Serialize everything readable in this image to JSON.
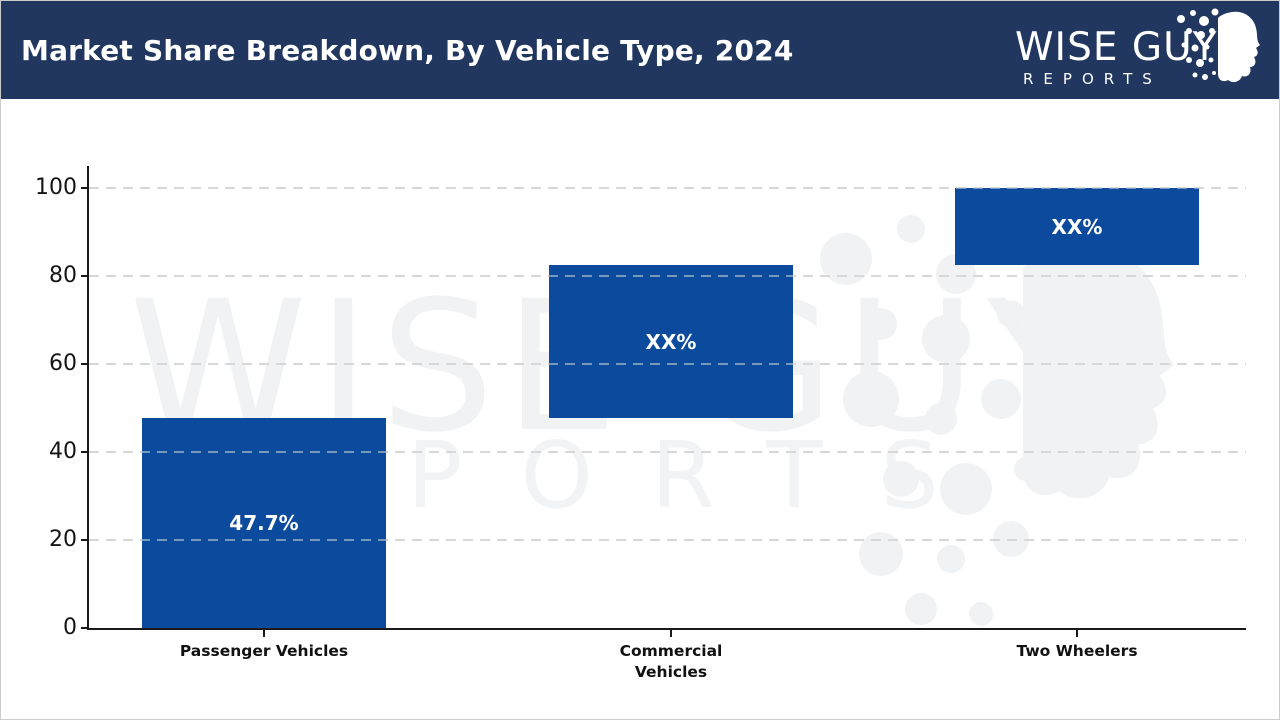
{
  "header": {
    "title": "Market Share Breakdown, By Vehicle Type, 2024",
    "bg_color": "#21375f",
    "logo": {
      "line1": "WISE GUY",
      "line2": "REPORTS"
    }
  },
  "watermark": {
    "line1": "WISE GUY",
    "line2": "REPORTS"
  },
  "chart_data": {
    "type": "bar",
    "subtype": "waterfall-stacked-segments",
    "title": "Market Share Breakdown, By Vehicle Type, 2024",
    "categories": [
      {
        "lines": [
          "Passenger Vehicles"
        ]
      },
      {
        "lines": [
          "Commercial",
          "Vehicles"
        ]
      },
      {
        "lines": [
          "Two Wheelers"
        ]
      }
    ],
    "series": [
      {
        "name": "Market Share (%)",
        "segments": [
          {
            "category": "Passenger Vehicles",
            "start": 0,
            "end": 47.7,
            "label": "47.7%"
          },
          {
            "category": "Commercial Vehicles",
            "start": 47.7,
            "end": 82.5,
            "label": "XX%"
          },
          {
            "category": "Two Wheelers",
            "start": 82.5,
            "end": 100,
            "label": "XX%"
          }
        ]
      }
    ],
    "yticks": [
      0,
      20,
      40,
      60,
      80,
      100
    ],
    "ylim": [
      0,
      100
    ],
    "xlabel": "",
    "ylabel": "",
    "grid": "horizontal-dashed",
    "legend": "none",
    "bar_color": "#0b4a9c",
    "bar_label_color": "#ffffff",
    "grid_color": "#d9d9d9",
    "axis_color": "#1a1a1a",
    "watermark_color": "#f1f2f4"
  }
}
